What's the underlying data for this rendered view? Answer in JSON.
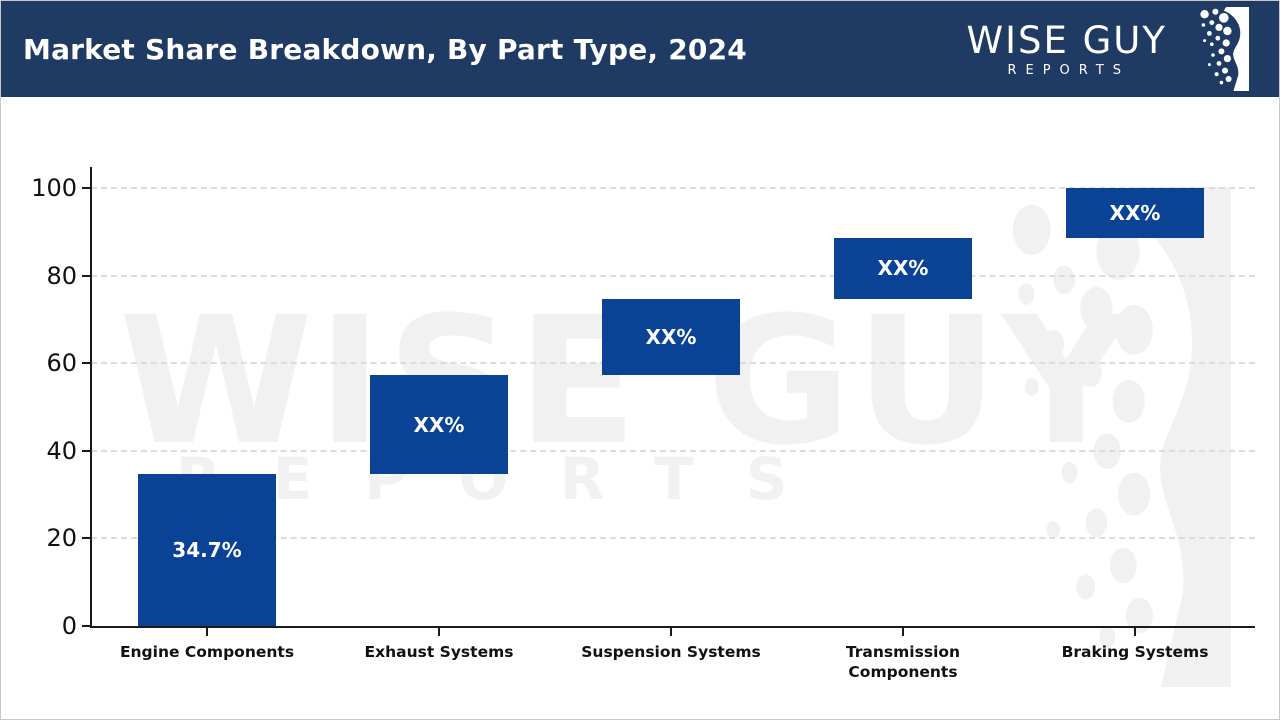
{
  "header": {
    "title": "Market Share Breakdown, By Part Type, 2024",
    "logo": {
      "line1": "WISE GUY",
      "line2": "REPORTS"
    }
  },
  "watermark": {
    "line1": "WISE GUY",
    "line2": "REPORTS"
  },
  "chart_data": {
    "type": "bar",
    "subtype": "waterfall",
    "title": "Market Share Breakdown, By Part Type, 2024",
    "categories": [
      "Engine Components",
      "Exhaust Systems",
      "Suspension Systems",
      "Transmission Components",
      "Braking Systems"
    ],
    "segments": [
      {
        "category": "Engine Components",
        "start": 0,
        "end": 34.7,
        "label": "34.7%"
      },
      {
        "category": "Exhaust Systems",
        "start": 34.7,
        "end": 57.3,
        "label": "XX%"
      },
      {
        "category": "Suspension Systems",
        "start": 57.3,
        "end": 74.7,
        "label": "XX%"
      },
      {
        "category": "Transmission Components",
        "start": 74.7,
        "end": 88.6,
        "label": "XX%"
      },
      {
        "category": "Braking Systems",
        "start": 88.6,
        "end": 100,
        "label": "XX%"
      }
    ],
    "values": [
      34.7,
      22.6,
      17.4,
      13.9,
      11.4
    ],
    "xlabel": "",
    "ylabel": "",
    "ylim": [
      0,
      100
    ],
    "yticks": [
      0,
      20,
      40,
      60,
      80,
      100
    ],
    "grid": "horizontal-dashed",
    "legend": "none",
    "bar_color": "#0a4296",
    "bar_label_color": "#ffffff"
  },
  "colors": {
    "header_bg": "#1f3a63",
    "bar": "#0a4296",
    "axis": "#1a1a1a",
    "grid": "#dcdcdc",
    "watermark": "#f1f1f1",
    "frame_border": "#c9c9c9",
    "title_text": "#ffffff"
  }
}
